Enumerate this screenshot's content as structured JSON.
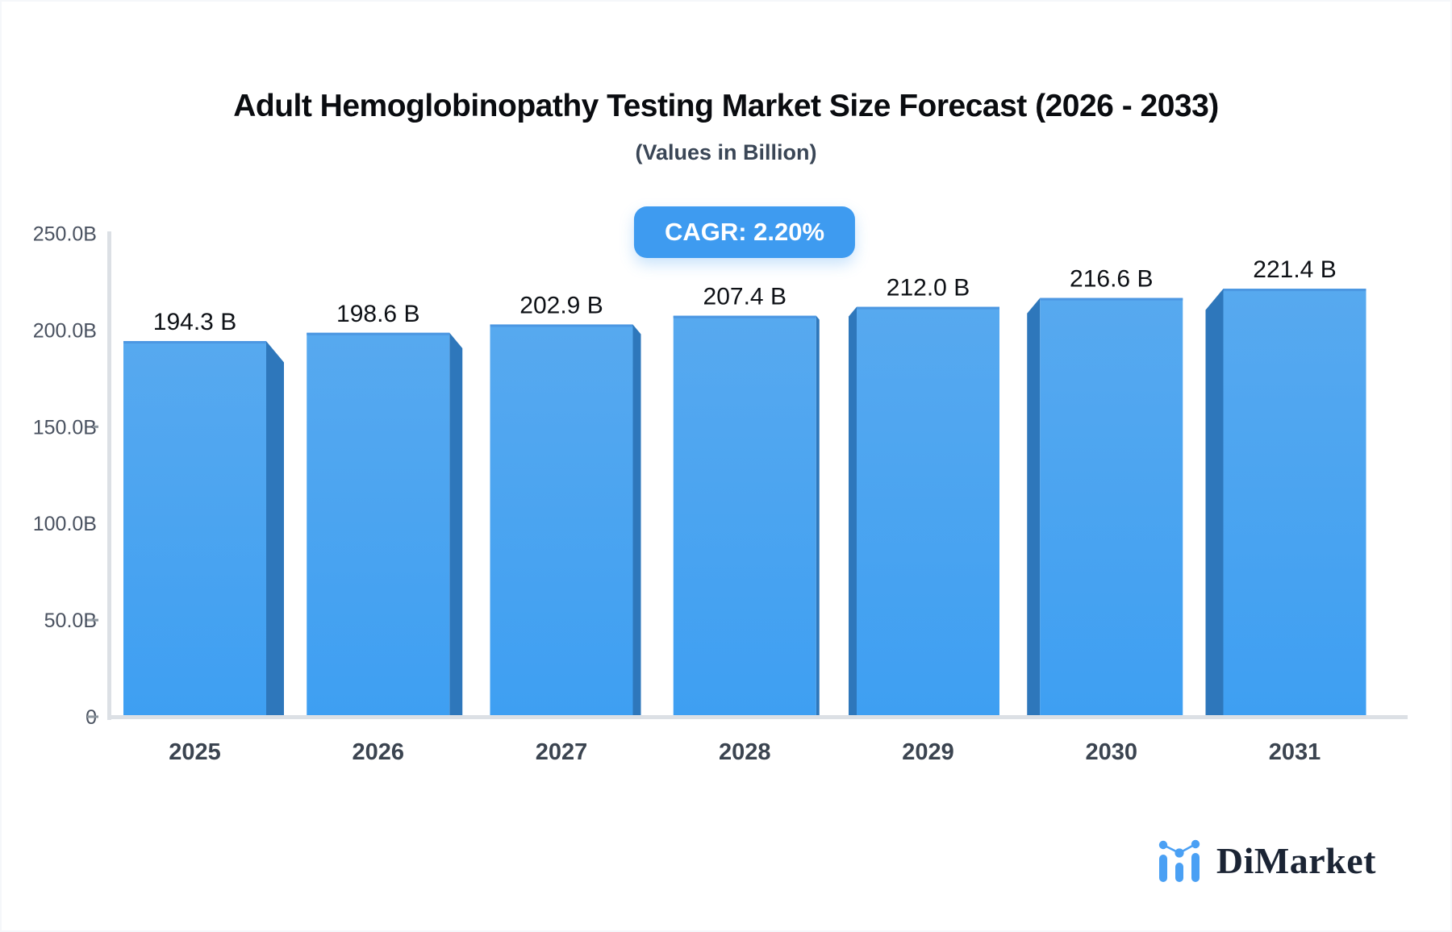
{
  "header": {
    "title": "Adult Hemoglobinopathy Testing Market Size Forecast (2026 - 2033)",
    "subtitle": "(Values in Billion)"
  },
  "badge": {
    "label": "CAGR: 2.20%",
    "bg_color": "#3E9BF0",
    "text_color": "#FFFFFF"
  },
  "chart_data": {
    "type": "bar",
    "title": "Adult Hemoglobinopathy Testing Market Size Forecast (2026 - 2033)",
    "subtitle": "(Values in Billion)",
    "categories": [
      "2025",
      "2026",
      "2027",
      "2028",
      "2029",
      "2030",
      "2031"
    ],
    "values": [
      194.3,
      198.6,
      202.9,
      207.4,
      212.0,
      216.6,
      221.4
    ],
    "value_labels": [
      "194.3 B",
      "198.6 B",
      "202.9 B",
      "207.4 B",
      "212.0 B",
      "216.6 B",
      "221.4 B"
    ],
    "xlabel": "",
    "ylabel": "",
    "ylim": [
      0,
      250
    ],
    "y_ticks": [
      {
        "value": 250,
        "label": "250.0B"
      },
      {
        "value": 200,
        "label": "200.0B"
      },
      {
        "value": 150,
        "label": "150.0B"
      },
      {
        "value": 100,
        "label": "100.0B"
      },
      {
        "value": 50,
        "label": "50.0B"
      },
      {
        "value": 0,
        "label": "0"
      }
    ],
    "grid": false,
    "legend": false,
    "annotation": "CAGR: 2.20%",
    "colors": {
      "bar_face_top": "#57A9EF",
      "bar_face_bottom": "#3E9FF2",
      "bar_side": "#2E77BB",
      "bar_top_edge": "#4C97E2",
      "axis_line": "#DCE0E5",
      "tick_dash": "#8E979F",
      "y_tick_label": "#4A5260",
      "category_label": "#3B4450",
      "value_label": "#0E1116"
    }
  },
  "branding": {
    "name": "DiMarket",
    "icon": "bar-line-chart-icon",
    "icon_color": "#4AA0F4",
    "text_color": "#1B2434"
  }
}
